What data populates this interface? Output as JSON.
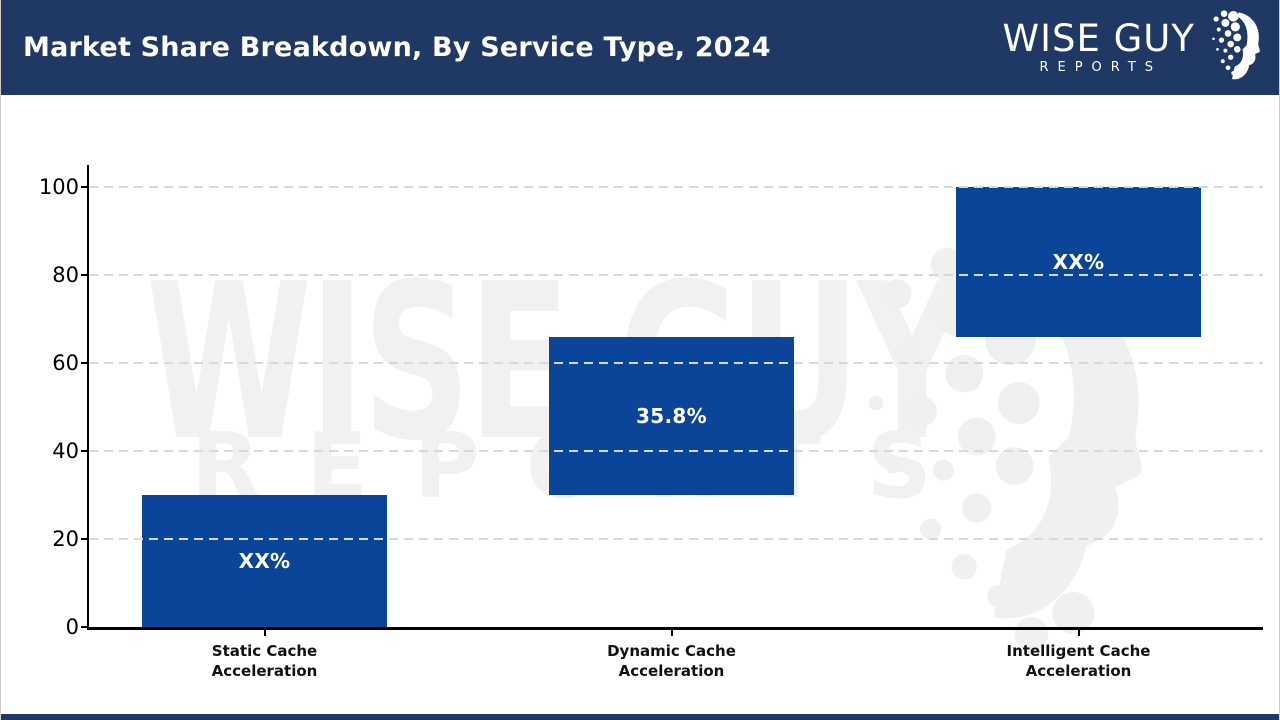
{
  "header": {
    "title": "Market Share Breakdown, By Service Type, 2024",
    "bg_color": "#1f3864",
    "logo": {
      "line1": "WISE GUY",
      "line2": "REPORTS"
    }
  },
  "watermark": {
    "line1": "WISE GUY",
    "line2": "REPORTS"
  },
  "footer": {
    "bg_color": "#1f3864"
  },
  "chart_data": {
    "type": "bar",
    "subtype": "floating-waterfall",
    "title": "Market Share Breakdown, By Service Type, 2024",
    "unit": "%",
    "categories": [
      "Static Cache Acceleration",
      "Dynamic Cache Acceleration",
      "Intelligent Cache Acceleration"
    ],
    "category_label_lines": [
      [
        "Static Cache",
        "Acceleration"
      ],
      [
        "Dynamic Cache",
        "Acceleration"
      ],
      [
        "Intelligent Cache",
        "Acceleration"
      ]
    ],
    "segments": [
      {
        "category": "Static Cache Acceleration",
        "start": 0,
        "end": 30,
        "label": "XX%"
      },
      {
        "category": "Dynamic Cache Acceleration",
        "start": 30,
        "end": 65.8,
        "label": "35.8%"
      },
      {
        "category": "Intelligent Cache Acceleration",
        "start": 65.8,
        "end": 100,
        "label": "XX%"
      }
    ],
    "bar_color": "#0b4599",
    "label_color": "#ffffff",
    "yticks": [
      0,
      20,
      40,
      60,
      80,
      100
    ],
    "ylim": [
      0,
      105
    ],
    "xlabel": "",
    "ylabel": "",
    "grid": "horizontal-dashed",
    "grid_color": "#d8d8d8",
    "legend": "none"
  }
}
